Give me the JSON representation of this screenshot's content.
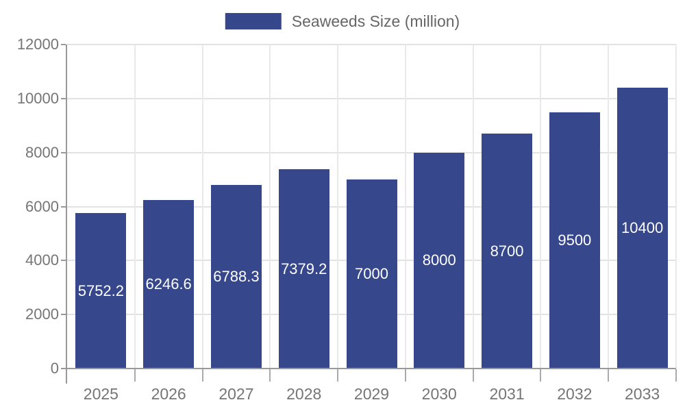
{
  "legend": {
    "label": "Seaweeds Size (million)"
  },
  "colors": {
    "bar": "#36478B",
    "axis_line": "#999999",
    "grid_horizontal": "#e2e2e2",
    "grid_vertical": "#e9e9e9",
    "tick_mark": "#aaaaaa",
    "axis_text": "#757575",
    "legend_text": "#666666",
    "bar_label": "#ffffff",
    "background": "#ffffff"
  },
  "chart_data": {
    "type": "bar",
    "title": "Seaweeds Size (million)",
    "series_name": "Seaweeds Size (million)",
    "categories": [
      "2025",
      "2026",
      "2027",
      "2028",
      "2029",
      "2030",
      "2031",
      "2032",
      "2033"
    ],
    "values": [
      5752.2,
      6246.6,
      6788.3,
      7379.2,
      7000,
      8000,
      8700,
      9500,
      10400
    ],
    "value_labels": [
      "5752.2",
      "6246.6",
      "6788.3",
      "7379.2",
      "7000",
      "8000",
      "8700",
      "9500",
      "10400"
    ],
    "xlabel": "",
    "ylabel": "",
    "ylim": [
      0,
      12000
    ],
    "yticks": [
      0,
      2000,
      4000,
      6000,
      8000,
      10000,
      12000
    ],
    "grid": true,
    "legend_position": "top",
    "value_label_position": "inside-center"
  }
}
